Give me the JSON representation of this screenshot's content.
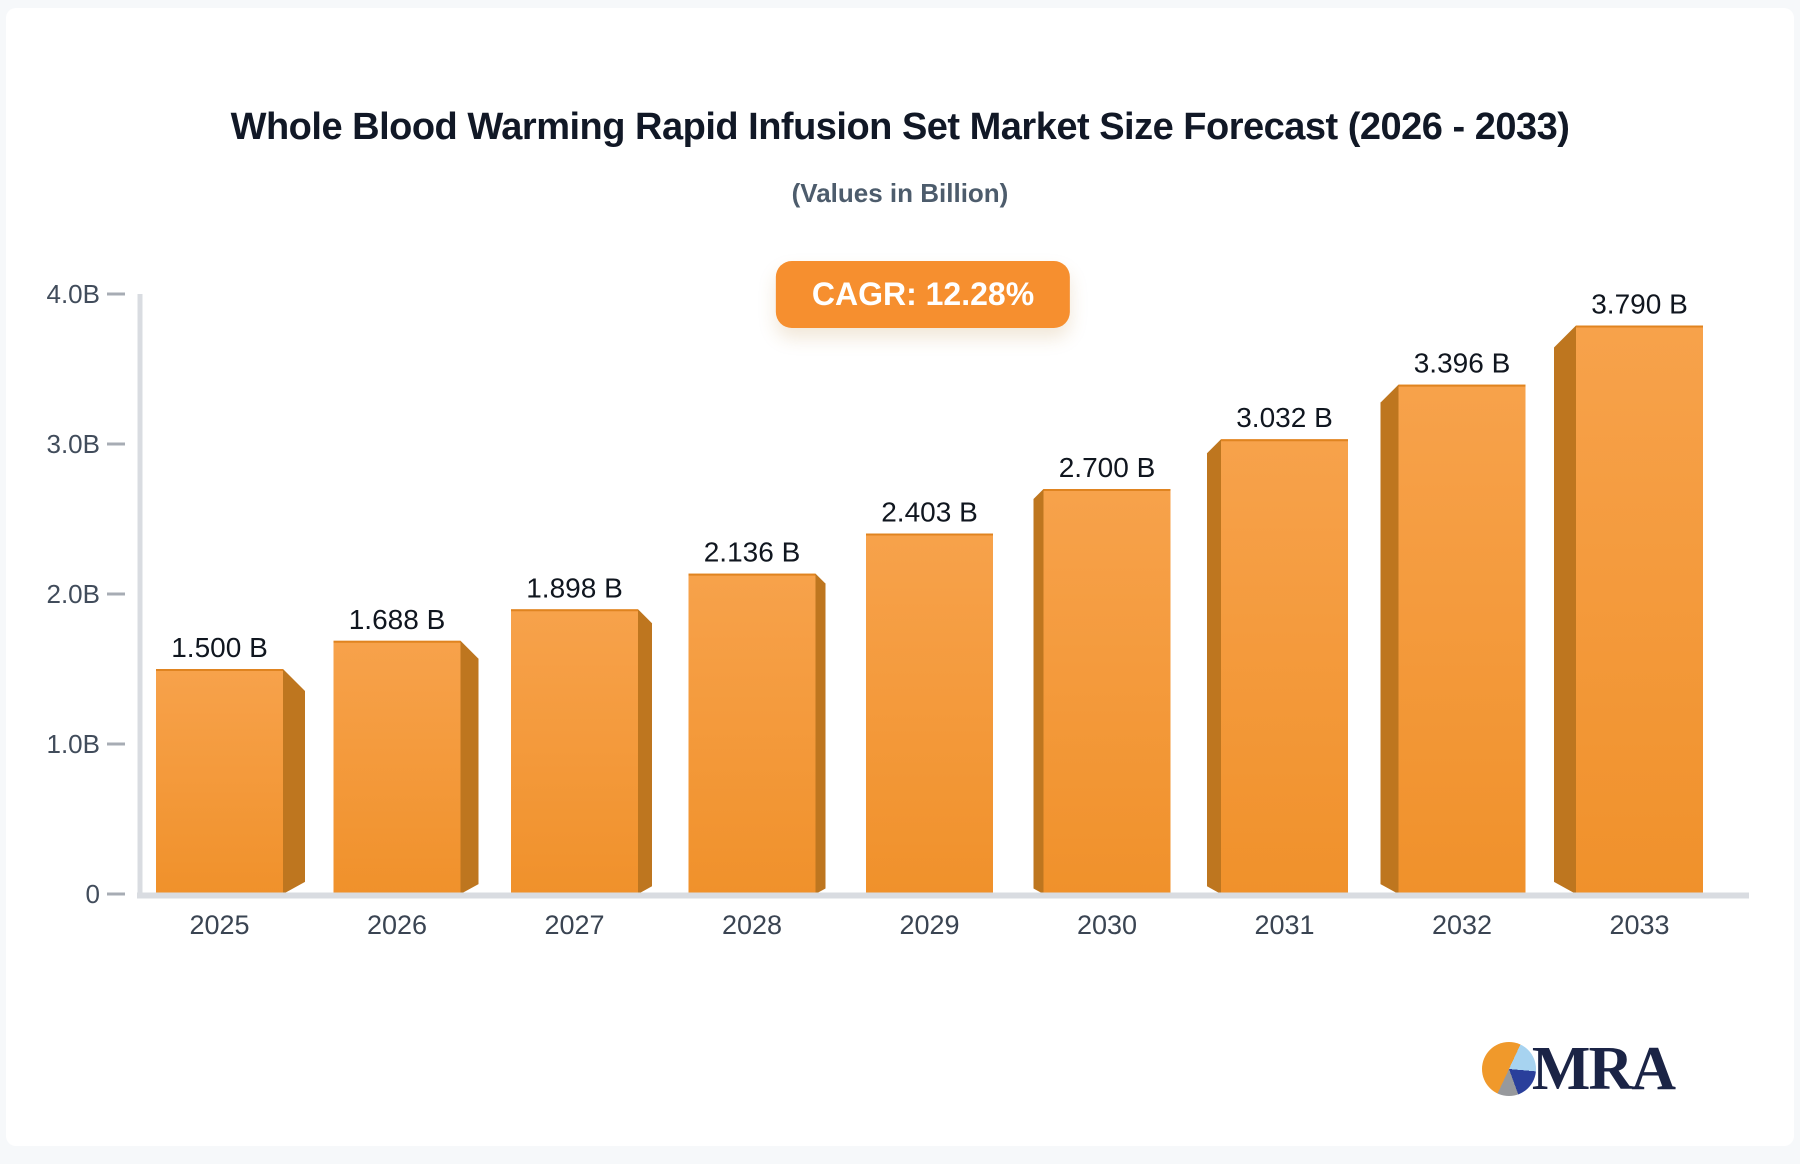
{
  "header": {
    "title": "Whole Blood Warming Rapid Infusion Set Market Size Forecast (2026 - 2033)",
    "subtitle": "(Values in Billion)",
    "cagr_badge": "CAGR: 12.28%"
  },
  "chart_data": {
    "type": "bar",
    "title": "Whole Blood Warming Rapid Infusion Set Market Size Forecast (2026 - 2033)",
    "subtitle": "(Values in Billion)",
    "cagr_percent": "12.28%",
    "categories": [
      "2025",
      "2026",
      "2027",
      "2028",
      "2029",
      "2030",
      "2031",
      "2032",
      "2033"
    ],
    "values": [
      1.5,
      1.688,
      1.898,
      2.136,
      2.403,
      2.7,
      3.032,
      3.396,
      3.79
    ],
    "value_labels": [
      "1.500 B",
      "1.688 B",
      "1.898 B",
      "2.136 B",
      "2.403 B",
      "2.700 B",
      "3.032 B",
      "3.396 B",
      "3.790 B"
    ],
    "y_ticks": [
      {
        "value": 0,
        "label": "0"
      },
      {
        "value": 1,
        "label": "1.0B"
      },
      {
        "value": 2,
        "label": "2.0B"
      },
      {
        "value": 3,
        "label": "3.0B"
      },
      {
        "value": 4,
        "label": "4.0B"
      }
    ],
    "ylim": [
      0,
      4
    ],
    "grid": "off",
    "legend": "none",
    "colors": {
      "bar_face_top": "#f7a24b",
      "bar_face_bottom": "#f0912b",
      "bar_face_edge": "#e08420",
      "bar_side": "#be761f",
      "accent_badge": "#f68f2f",
      "axis_line": "#d9dce1",
      "tick_dash": "#a7acb4",
      "y_label_text": "#414c5b",
      "x_label_text": "#3a4452",
      "value_label_text": "#10161f"
    }
  },
  "logo": {
    "text": "MRA",
    "pie_orange": "#f0992b",
    "pie_light_blue": "#a7d3f0",
    "pie_dark_blue": "#2a3f9b",
    "pie_gray": "#97999d",
    "text_color": "#1b2446"
  }
}
